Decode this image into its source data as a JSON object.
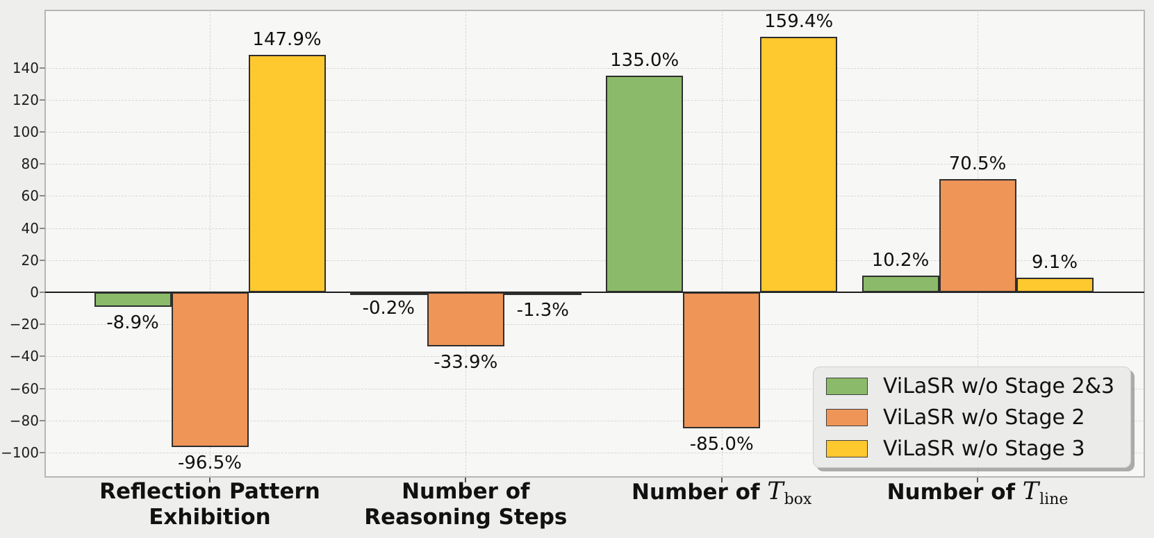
{
  "chart_data": {
    "type": "bar",
    "title": "",
    "xlabel": "",
    "ylabel": "",
    "grid": true,
    "zero_line": true,
    "bar_edge_color": "#2e2e2e",
    "ylim": [
      -115,
      176
    ],
    "categories": [
      "Reflection Pattern Exhibition",
      "Number of Reasoning Steps",
      "Number of 𝒯_box",
      "Number of 𝒯_line"
    ],
    "category_labels": [
      {
        "line1": "Reflection Pattern",
        "line2": "Exhibition",
        "symbol": "",
        "subscript": ""
      },
      {
        "line1": "Number of",
        "line2": "Reasoning Steps",
        "symbol": "",
        "subscript": ""
      },
      {
        "line1": "Number of",
        "line2": "",
        "symbol": "T",
        "subscript": "box"
      },
      {
        "line1": "Number of",
        "line2": "",
        "symbol": "T",
        "subscript": "line"
      }
    ],
    "series": [
      {
        "name": "ViLaSR w/o Stage 2&3",
        "color": "#8bbb6a",
        "values": [
          -8.9,
          -0.2,
          135.0,
          10.2
        ],
        "labels": [
          "-8.9%",
          "-0.2%",
          "135.0%",
          "10.2%"
        ]
      },
      {
        "name": "ViLaSR w/o Stage 2",
        "color": "#ee9557",
        "values": [
          -96.5,
          -33.9,
          -85.0,
          70.5
        ],
        "labels": [
          "-96.5%",
          "-33.9%",
          "-85.0%",
          "70.5%"
        ]
      },
      {
        "name": "ViLaSR w/o Stage 3",
        "color": "#fec82f",
        "values": [
          147.9,
          -1.3,
          159.4,
          9.1
        ],
        "labels": [
          "147.9%",
          "-1.3%",
          "159.4%",
          "9.1%"
        ]
      }
    ],
    "yticks": [
      {
        "value": -100,
        "label": "−100"
      },
      {
        "value": -80,
        "label": "−80"
      },
      {
        "value": -60,
        "label": "−60"
      },
      {
        "value": -40,
        "label": "−40"
      },
      {
        "value": -20,
        "label": "−20"
      },
      {
        "value": 0,
        "label": "0"
      },
      {
        "value": 20,
        "label": "20"
      },
      {
        "value": 40,
        "label": "40"
      },
      {
        "value": 60,
        "label": "60"
      },
      {
        "value": 80,
        "label": "80"
      },
      {
        "value": 100,
        "label": "100"
      },
      {
        "value": 120,
        "label": "120"
      },
      {
        "value": 140,
        "label": "140"
      }
    ],
    "legend": {
      "position": "lower right",
      "items": [
        {
          "label": "ViLaSR w/o Stage 2&3",
          "color": "#8bbb6a"
        },
        {
          "label": "ViLaSR w/o Stage 2",
          "color": "#ee9557"
        },
        {
          "label": "ViLaSR w/o Stage 3",
          "color": "#fec82f"
        }
      ]
    }
  }
}
